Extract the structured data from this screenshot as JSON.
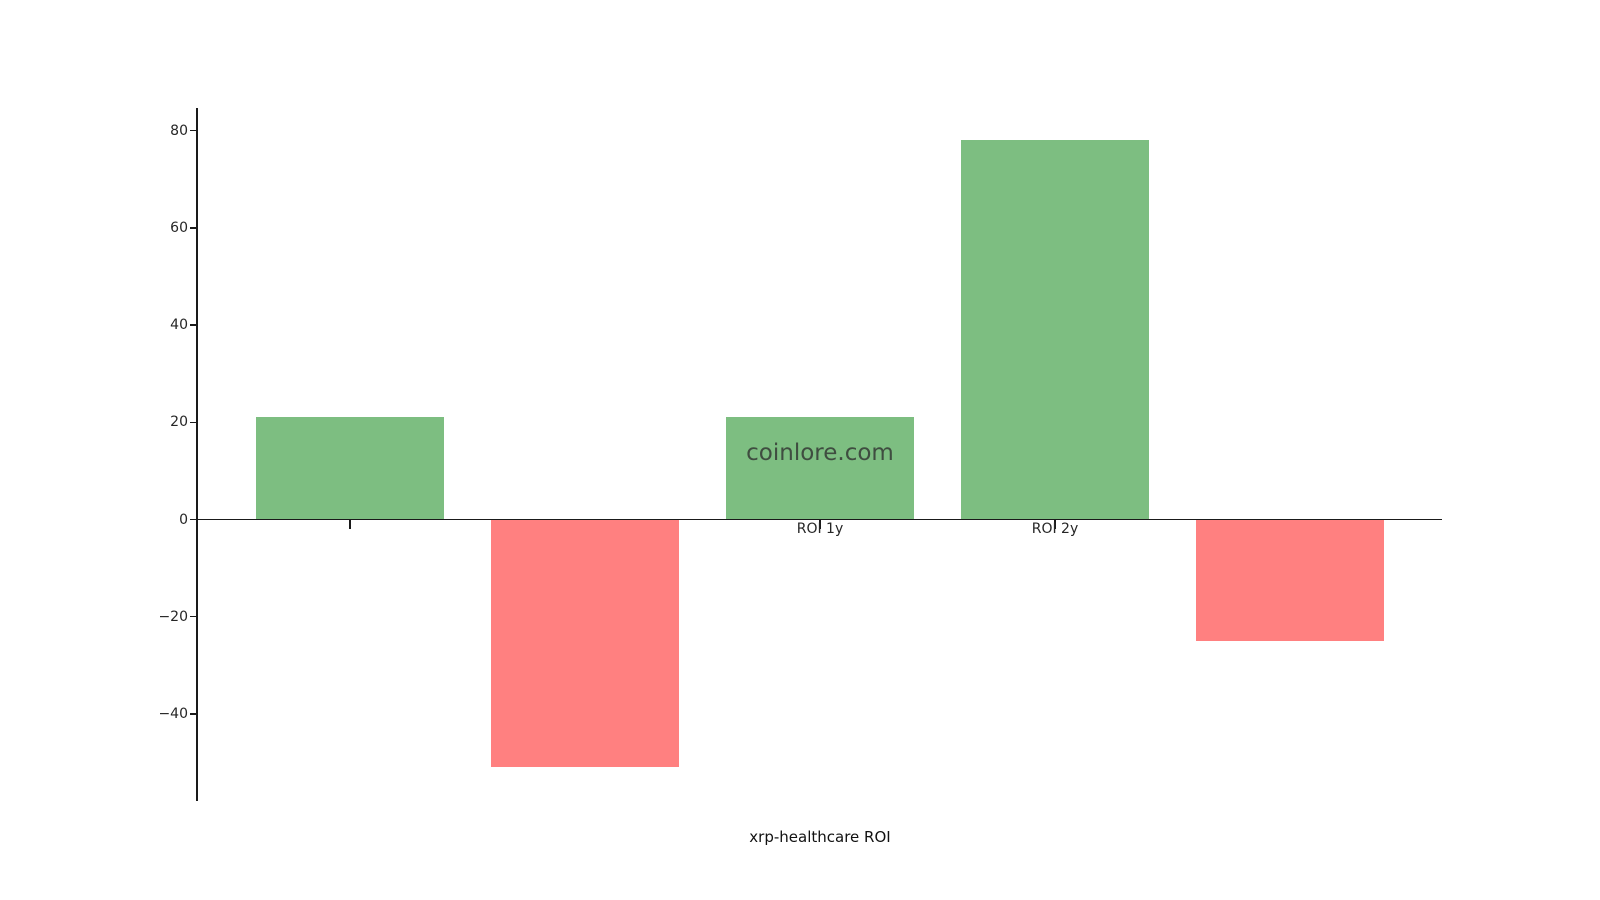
{
  "chart_data": {
    "type": "bar",
    "title": "xrp-healthcare ROI",
    "watermark": "coinlore.com",
    "categories": [
      "",
      "",
      "ROI 1y",
      "ROI 2y",
      ""
    ],
    "values": [
      21,
      -51,
      21,
      78,
      -25
    ],
    "positive_color": "#7dbe81",
    "negative_color": "#ff8080",
    "axis_color": "#1a1a1a",
    "tick_text_color": "#262626",
    "watermark_color": "#3f4d40",
    "yticks": [
      {
        "value": 80,
        "label": "80"
      },
      {
        "value": 60,
        "label": "60"
      },
      {
        "value": 40,
        "label": "40"
      },
      {
        "value": 20,
        "label": "20"
      },
      {
        "value": 0,
        "label": "0"
      },
      {
        "value": -20,
        "label": "−20"
      },
      {
        "value": -40,
        "label": "−40"
      }
    ],
    "ylim": [
      -58,
      85
    ],
    "xlabel": "",
    "ylabel": "",
    "grid": false,
    "legend": null
  }
}
